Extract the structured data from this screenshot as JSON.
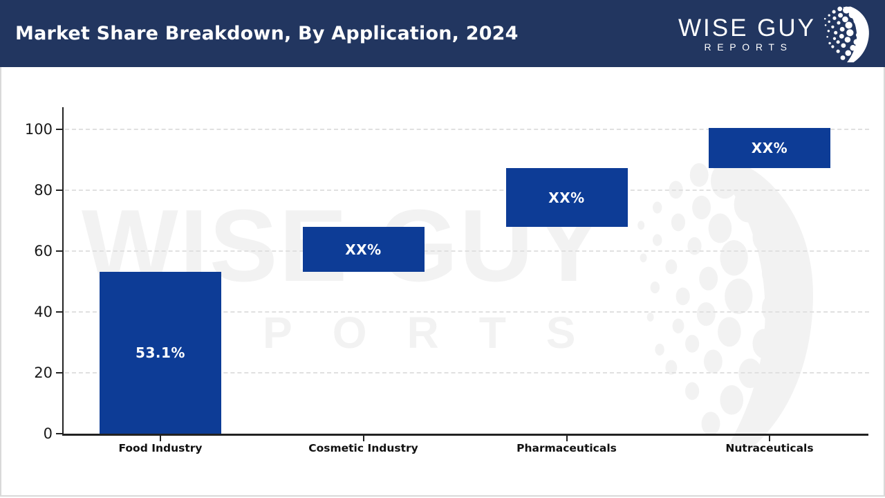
{
  "header": {
    "title": "Market Share Breakdown, By Application, 2024",
    "logo": {
      "line1": "WISE GUY",
      "line2": "REPORTS"
    }
  },
  "watermark": {
    "line1": "WISE GUY",
    "line2": "PORTS"
  },
  "colors": {
    "header-bg": "#223660",
    "bar": "#0d3c96",
    "watermark": "#f2f2f2",
    "border": "#d9d9d9",
    "axis": "#222222",
    "grid": "#e0e0e0"
  },
  "chart_data": {
    "type": "bar",
    "subtype": "waterfall",
    "title": "Market Share Breakdown, By Application, 2024",
    "categories": [
      "Food Industry",
      "Cosmetic Industry",
      "Pharmaceuticals",
      "Nutraceuticals"
    ],
    "segments": [
      {
        "category": "Food Industry",
        "start": 0,
        "end": 53.1,
        "label": "53.1%"
      },
      {
        "category": "Cosmetic Industry",
        "start": 53.1,
        "end": 68,
        "label": "XX%"
      },
      {
        "category": "Pharmaceuticals",
        "start": 68,
        "end": 87.2,
        "label": "XX%"
      },
      {
        "category": "Nutraceuticals",
        "start": 87.2,
        "end": 100.4,
        "label": "XX%"
      }
    ],
    "xlabel": "",
    "ylabel": "",
    "yticks": [
      0,
      20,
      40,
      60,
      80,
      100
    ],
    "ylim": [
      0,
      105
    ],
    "grid": "horizontal dashed",
    "legend": false,
    "bar_color": "#0d3c96",
    "bar_label_color": "#ffffff"
  }
}
